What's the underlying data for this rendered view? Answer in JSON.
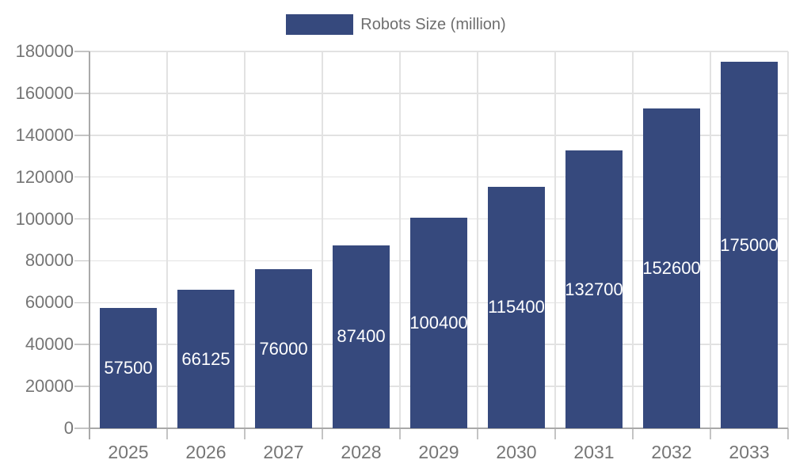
{
  "legend": {
    "label": "Robots Size (million)"
  },
  "colors": {
    "bar": "#36497D",
    "grid": "#E2E2E2",
    "axis": "#A9A9A9",
    "tick": "#C4C4C4",
    "tick_label": "#757575",
    "legend_text": "#6E6E6E",
    "value_label": "#FFFFFF",
    "background": "#FFFFFF"
  },
  "chart_data": {
    "type": "bar",
    "title": "",
    "xlabel": "",
    "ylabel": "",
    "legend_position": "top-center",
    "grid": true,
    "categories": [
      "2025",
      "2026",
      "2027",
      "2028",
      "2029",
      "2030",
      "2031",
      "2032",
      "2033"
    ],
    "series": [
      {
        "name": "Robots Size (million)",
        "values": [
          57500,
          66125,
          76000,
          87400,
          100400,
          115400,
          132700,
          152600,
          175000
        ]
      }
    ],
    "value_labels": "inside-center-white",
    "ylim": [
      0,
      180000
    ],
    "yticks": [
      0,
      20000,
      40000,
      60000,
      80000,
      100000,
      120000,
      140000,
      160000,
      180000
    ]
  }
}
